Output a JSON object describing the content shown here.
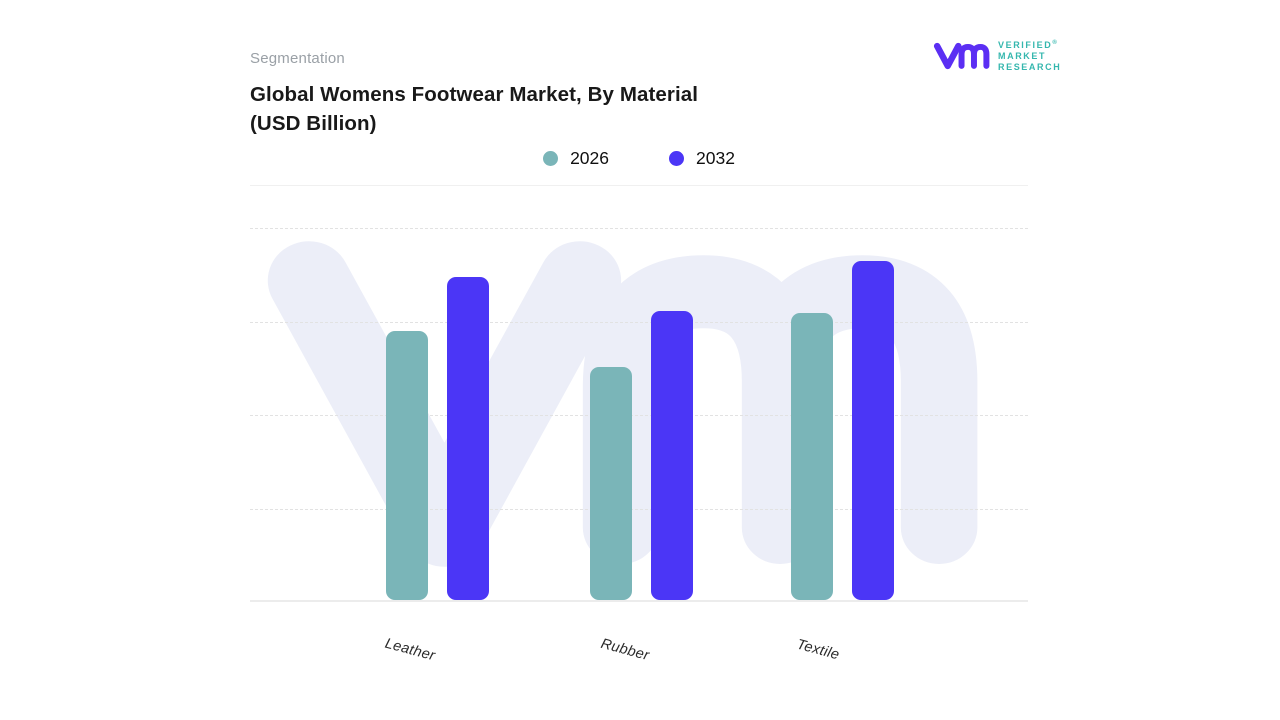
{
  "header": {
    "eyebrow": "Segmentation",
    "title_line1": "Global Womens Footwear Market, By Material",
    "title_line2": "(USD Billion)"
  },
  "logo": {
    "name": "Verified Market Research",
    "monogram_icon": "vmr-monogram",
    "monogram_color": "#5b2ef3",
    "text_color": "#35b7ae",
    "lines": [
      "VERIFIED",
      "MARKET",
      "RESEARCH"
    ],
    "registered_mark": "®"
  },
  "chart_data": {
    "type": "bar",
    "title": "Global Womens Footwear Market, By Material (USD Billion)",
    "categories": [
      "Leather",
      "Rubber",
      "Textile"
    ],
    "series": [
      {
        "name": "2026",
        "color": "#7ab5b8",
        "values": [
          2.88,
          2.49,
          3.07
        ]
      },
      {
        "name": "2032",
        "color": "#4b36f6",
        "values": [
          3.45,
          3.09,
          3.63
        ]
      }
    ],
    "value_axis": {
      "labels_visible": false,
      "min": 0,
      "max": 4,
      "gridline_count": 4,
      "note": "no numeric tick labels shown; values estimated in gridline units"
    },
    "legend_position": "top-center",
    "grid": "horizontal-dashed",
    "grid_color": "#e2e2e2",
    "baseline_color": "#ececec",
    "watermark_icon": "vmr-monogram",
    "watermark_color": "#eceef8"
  }
}
